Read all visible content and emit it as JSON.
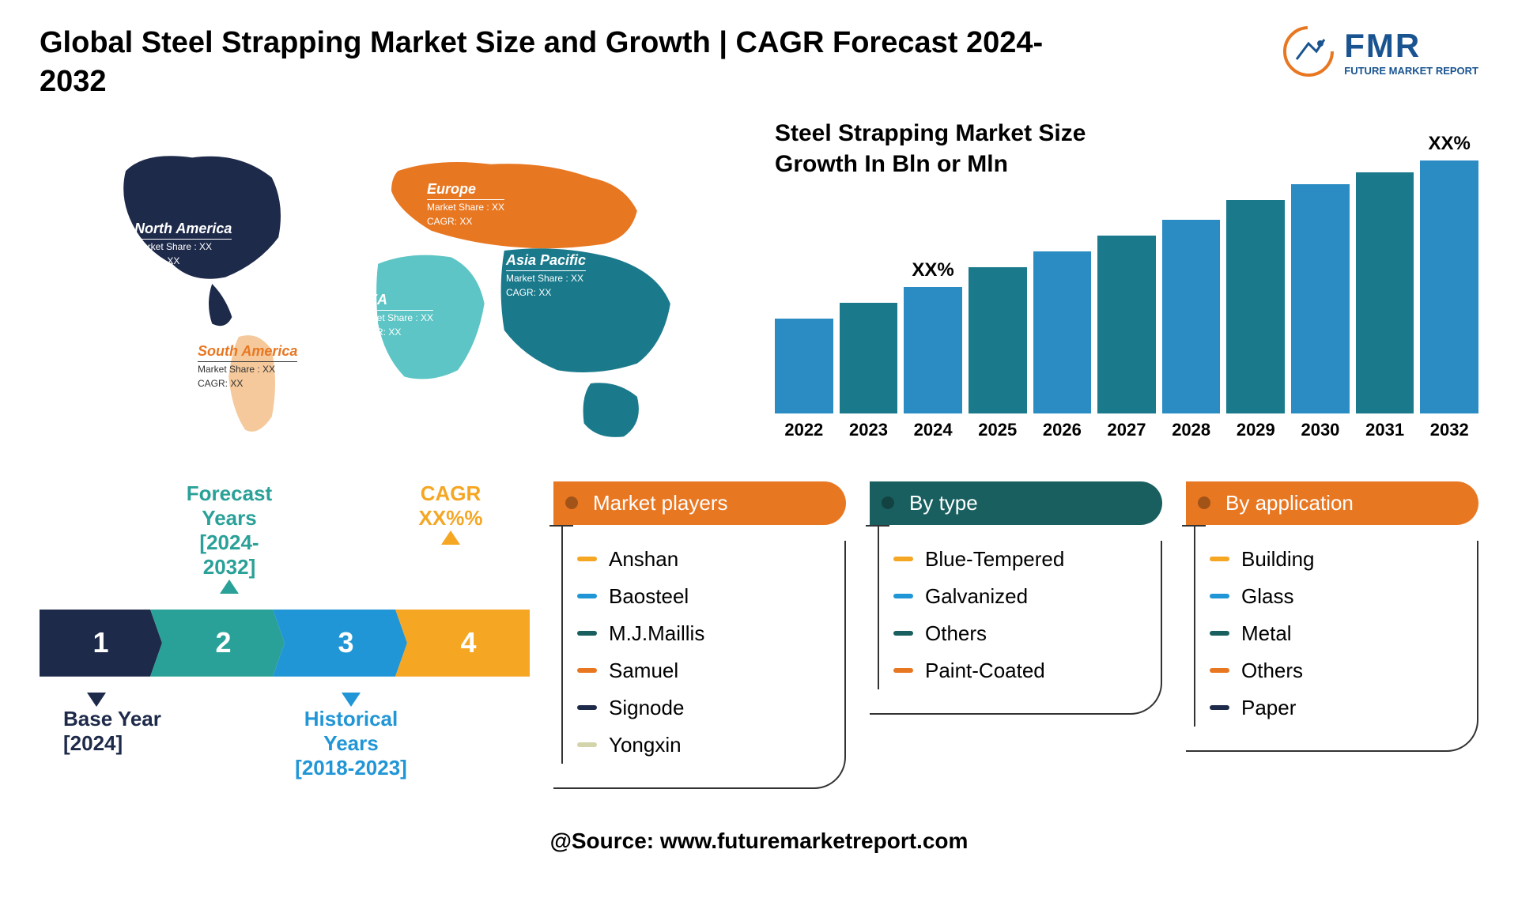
{
  "title": "Global Steel Strapping Market Size and Growth | CAGR Forecast 2024-2032",
  "logo": {
    "brand": "FMR",
    "tagline": "FUTURE MARKET REPORT"
  },
  "colors": {
    "brandBlue": "#1a5490",
    "brandOrange": "#e87722",
    "darkNavy": "#1e2a4a",
    "teal": "#2aa198",
    "lightTeal": "#5dc5c5",
    "mediumBlue": "#2196d6",
    "barBlue": "#2b8cc4",
    "barTeal": "#1a7a8c",
    "amber": "#f5a623",
    "categoryOrange": "#e87722",
    "categoryTeal": "#1a5f5f"
  },
  "map": {
    "regions": [
      {
        "name": "North America",
        "share": "Market Share : XX",
        "cagr": "CAGR: XX",
        "color": "#1e2a4a"
      },
      {
        "name": "South America",
        "share": "Market Share : XX",
        "cagr": "CAGR: XX",
        "color": "#f5c99b"
      },
      {
        "name": "Europe",
        "share": "Market Share : XX",
        "cagr": "CAGR: XX",
        "color": "#e87722"
      },
      {
        "name": "MEA",
        "share": "Market Share : XX",
        "cagr": "CAGR: XX",
        "color": "#5dc5c5"
      },
      {
        "name": "Asia Pacific",
        "share": "Market Share : XX",
        "cagr": "CAGR: XX",
        "color": "#1a7a8c"
      }
    ]
  },
  "chart": {
    "title": "Steel Strapping Market Size Growth In Bln or Mln",
    "type": "bar",
    "years": [
      "2022",
      "2023",
      "2024",
      "2025",
      "2026",
      "2027",
      "2028",
      "2029",
      "2030",
      "2031",
      "2032"
    ],
    "heights": [
      120,
      140,
      160,
      185,
      205,
      225,
      245,
      270,
      290,
      305,
      320
    ],
    "colors": [
      "#2b8cc4",
      "#1a7a8c",
      "#2b8cc4",
      "#1a7a8c",
      "#2b8cc4",
      "#1a7a8c",
      "#2b8cc4",
      "#1a7a8c",
      "#2b8cc4",
      "#1a7a8c",
      "#2b8cc4"
    ],
    "annotations": [
      {
        "index": 2,
        "text": "XX%"
      },
      {
        "index": 10,
        "text": "XX%"
      }
    ]
  },
  "timeline": {
    "forecast": {
      "label": "Forecast Years",
      "range": "[2024-2032]",
      "color": "#2aa198"
    },
    "cagr": {
      "label": "CAGR",
      "value": "XX%%",
      "color": "#f5a623"
    },
    "base": {
      "label": "Base Year",
      "range": "[2024]",
      "color": "#1e2a4a"
    },
    "historical": {
      "label": "Historical Years",
      "range": "[2018-2023]",
      "color": "#2196d6"
    },
    "segments": [
      {
        "num": "1",
        "color": "#1e2a4a"
      },
      {
        "num": "2",
        "color": "#2aa198"
      },
      {
        "num": "3",
        "color": "#2196d6"
      },
      {
        "num": "4",
        "color": "#f5a623"
      }
    ]
  },
  "categories": [
    {
      "title": "Market players",
      "headerColor": "#e87722",
      "items": [
        {
          "label": "Anshan",
          "color": "#f5a623"
        },
        {
          "label": "Baosteel",
          "color": "#2196d6"
        },
        {
          "label": "M.J.Maillis",
          "color": "#1a5f5f"
        },
        {
          "label": "Samuel",
          "color": "#e87722"
        },
        {
          "label": "Signode",
          "color": "#1e2a4a"
        },
        {
          "label": "Yongxin",
          "color": "#d4d4aa"
        }
      ]
    },
    {
      "title": "By type",
      "headerColor": "#1a5f5f",
      "items": [
        {
          "label": "Blue-Tempered",
          "color": "#f5a623"
        },
        {
          "label": "Galvanized",
          "color": "#2196d6"
        },
        {
          "label": "Others",
          "color": "#1a5f5f"
        },
        {
          "label": "Paint-Coated",
          "color": "#e87722"
        }
      ]
    },
    {
      "title": "By application",
      "headerColor": "#e87722",
      "items": [
        {
          "label": "Building",
          "color": "#f5a623"
        },
        {
          "label": "Glass",
          "color": "#2196d6"
        },
        {
          "label": "Metal",
          "color": "#1a5f5f"
        },
        {
          "label": "Others",
          "color": "#e87722"
        },
        {
          "label": "Paper",
          "color": "#1e2a4a"
        }
      ]
    }
  ],
  "source": "@Source: www.futuremarketreport.com"
}
